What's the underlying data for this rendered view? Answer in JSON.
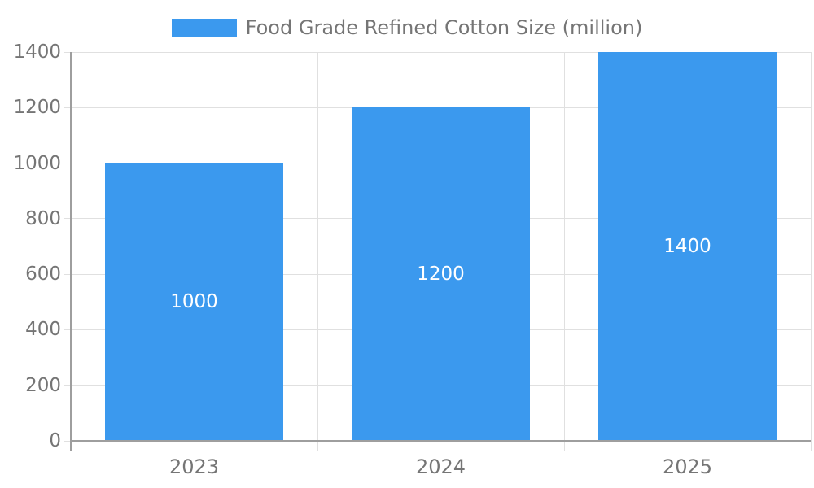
{
  "chart_data": {
    "type": "bar",
    "title": "",
    "categories": [
      "2023",
      "2024",
      "2025"
    ],
    "series": [
      {
        "name": "Food Grade Refined Cotton Size (million)",
        "values": [
          1000,
          1200,
          1400
        ]
      }
    ],
    "data_labels": [
      "1000",
      "1200",
      "1400"
    ],
    "ylim": [
      0,
      1400
    ],
    "yticks": [
      0,
      200,
      400,
      600,
      800,
      1000,
      1200,
      1400
    ],
    "xlabel": "",
    "ylabel": "",
    "grid": true,
    "legend_position": "top",
    "legend": [
      {
        "label": "Food Grade Refined Cotton Size (million)",
        "color": "#3B99EE"
      }
    ]
  },
  "colors": {
    "bar": "#3B99EE",
    "axis": "#9E9E9E",
    "gridline": "#E0E0E0",
    "text": "#757575",
    "data_label": "#FFFFFF",
    "background": "#FFFFFF"
  }
}
